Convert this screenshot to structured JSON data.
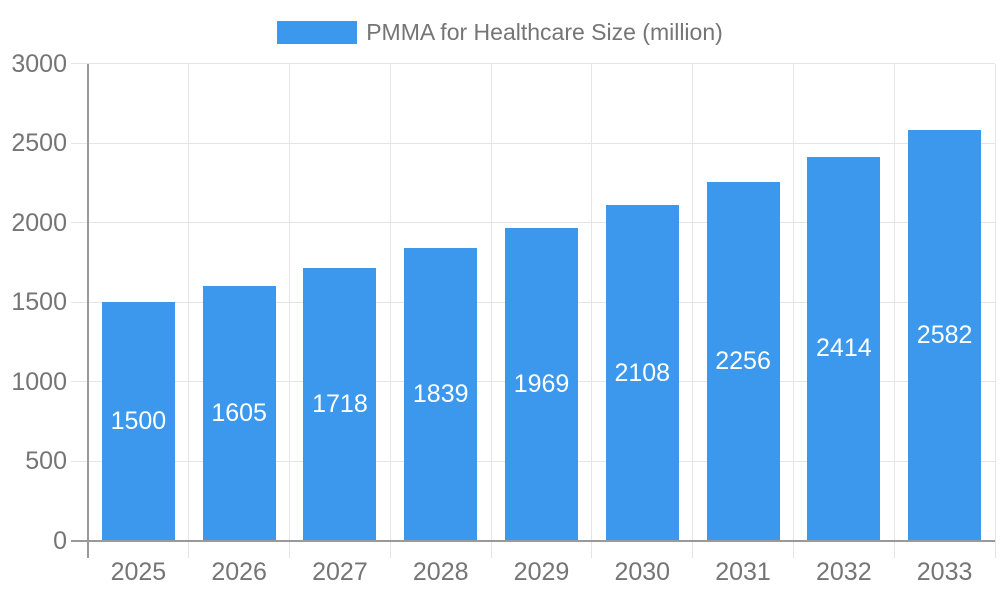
{
  "chart_data": {
    "type": "bar",
    "title": "PMMA for Healthcare Size (million)",
    "series": [
      {
        "name": "PMMA for Healthcare Size (million)",
        "values": [
          1500,
          1605,
          1718,
          1839,
          1969,
          2108,
          2256,
          2414,
          2582
        ]
      }
    ],
    "categories": [
      "2025",
      "2026",
      "2027",
      "2028",
      "2029",
      "2030",
      "2031",
      "2032",
      "2033"
    ],
    "xlabel": "",
    "ylabel": "",
    "ylim": [
      0,
      3000
    ],
    "yticks": [
      0,
      500,
      1000,
      1500,
      2000,
      2500,
      3000
    ],
    "grid": true,
    "legend_position": "top-center",
    "value_labels": "inside-center",
    "colors": {
      "bar": "#3B98EC",
      "grid": "#E5E5E5",
      "axis": "#999999",
      "tick_text": "#757575",
      "legend_text": "#757575",
      "value_label_text": "#FFFFFF",
      "background": "#FFFFFF"
    }
  }
}
